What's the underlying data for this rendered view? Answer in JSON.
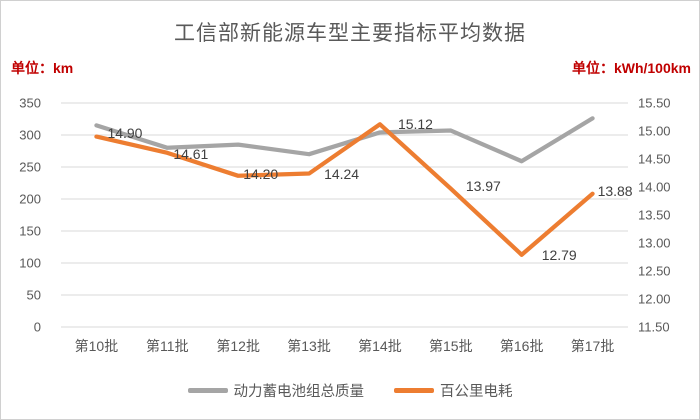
{
  "title": "工信部新能源车型主要指标平均数据",
  "left_unit": "单位：km",
  "right_unit": "单位：kWh/100km",
  "legend": {
    "series1": "动力蓄电池组总质量",
    "series2": "百公里电耗"
  },
  "colors": {
    "title_text": "#595959",
    "unit_label": "#c00000",
    "axis_text": "#595959",
    "gridline": "#d9d9d9",
    "data_label": "#404040",
    "series1": "#a5a5a5",
    "series2": "#ed7d31"
  },
  "chart_data": {
    "type": "line",
    "title": "工信部新能源车型主要指标平均数据",
    "categories": [
      "第10批",
      "第11批",
      "第12批",
      "第13批",
      "第14批",
      "第15批",
      "第16批",
      "第17批"
    ],
    "series": [
      {
        "name": "动力蓄电池组总质量",
        "axis": "left",
        "color": "#a5a5a5",
        "values": [
          315,
          280,
          285,
          270,
          304,
          307,
          259,
          326
        ]
      },
      {
        "name": "百公里电耗",
        "axis": "right",
        "color": "#ed7d31",
        "values": [
          14.9,
          14.61,
          14.2,
          14.24,
          15.12,
          13.97,
          12.79,
          13.88
        ],
        "data_labels": [
          "14.90",
          "14.61",
          "14.20",
          "14.24",
          "15.12",
          "13.97",
          "12.79",
          "13.88"
        ]
      }
    ],
    "left_axis": {
      "unit": "km",
      "min": 0,
      "max": 350,
      "ticks": [
        "350",
        "300",
        "250",
        "200",
        "150",
        "100",
        "50",
        "0"
      ]
    },
    "right_axis": {
      "unit": "kWh/100km",
      "min": 11.5,
      "max": 15.5,
      "ticks": [
        "15.50",
        "15.00",
        "14.50",
        "14.00",
        "13.50",
        "13.00",
        "12.50",
        "12.00",
        "11.50"
      ]
    },
    "grid": true,
    "legend_position": "bottom"
  }
}
